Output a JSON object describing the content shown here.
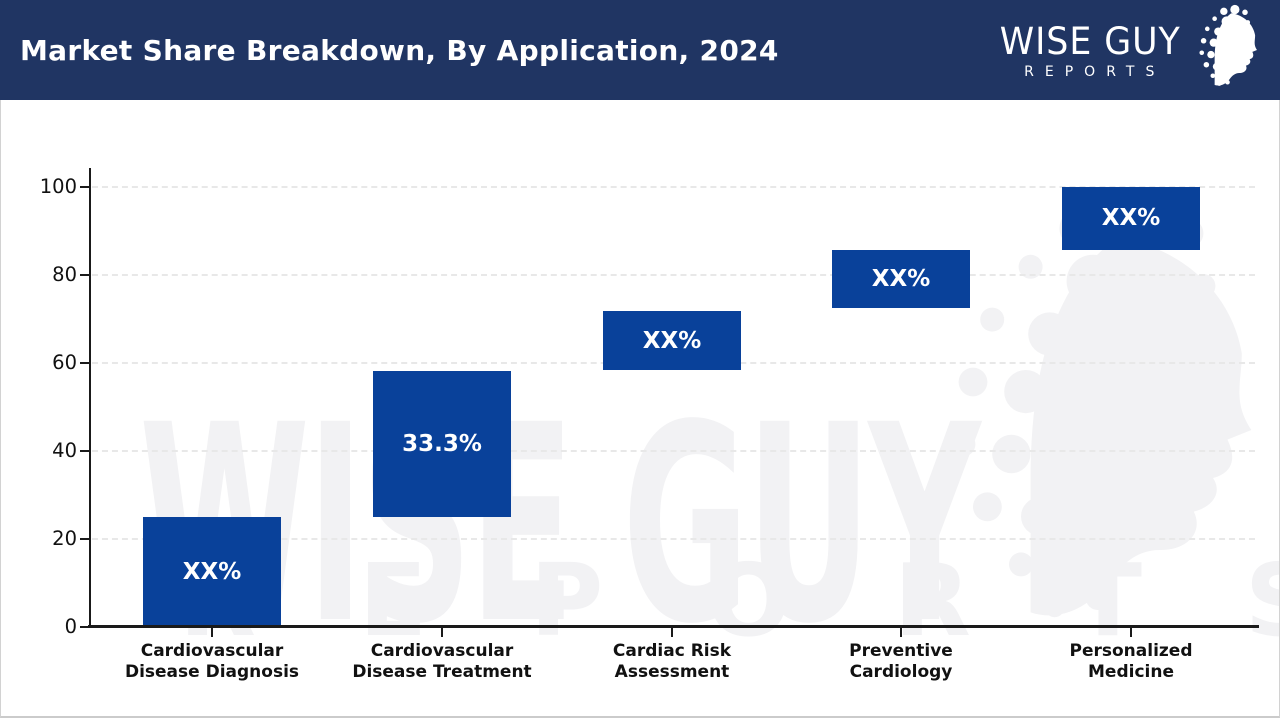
{
  "header": {
    "title": "Market Share Breakdown, By Application, 2024",
    "logo_line1": "WISE GUY",
    "logo_line2": "REPORTS"
  },
  "watermark": {
    "line1": "WISE GUY",
    "line2": "R E P O R T S"
  },
  "chart_data": {
    "type": "bar",
    "subtype": "waterfall",
    "title": "Market Share Breakdown, By Application, 2024",
    "xlabel": "",
    "ylabel": "",
    "ylim": [
      0,
      105
    ],
    "y_ticks": [
      0,
      20,
      40,
      60,
      80,
      100
    ],
    "grid": "horizontal-dashed",
    "legend": "none",
    "bar_color": "#09419a",
    "bar_label_color": "#ffffff",
    "categories": [
      "Cardiovascular Disease Diagnosis",
      "Cardiovascular Disease Treatment",
      "Cardiac Risk Assessment",
      "Preventive Cardiology",
      "Personalized Medicine"
    ],
    "bars": [
      {
        "category_lines": [
          "Cardiovascular",
          "Disease Diagnosis"
        ],
        "start": 0,
        "end": 25,
        "label": "XX%"
      },
      {
        "category_lines": [
          "Cardiovascular",
          "Disease Treatment"
        ],
        "start": 25,
        "end": 58.2,
        "label": "33.3%"
      },
      {
        "category_lines": [
          "Cardiac Risk",
          "Assessment"
        ],
        "start": 58.4,
        "end": 71.8,
        "label": "XX%"
      },
      {
        "category_lines": [
          "Preventive",
          "Cardiology"
        ],
        "start": 72.5,
        "end": 85.7,
        "label": "XX%"
      },
      {
        "category_lines": [
          "Personalized",
          "Medicine"
        ],
        "start": 85.7,
        "end": 100,
        "label": "XX%"
      }
    ]
  }
}
